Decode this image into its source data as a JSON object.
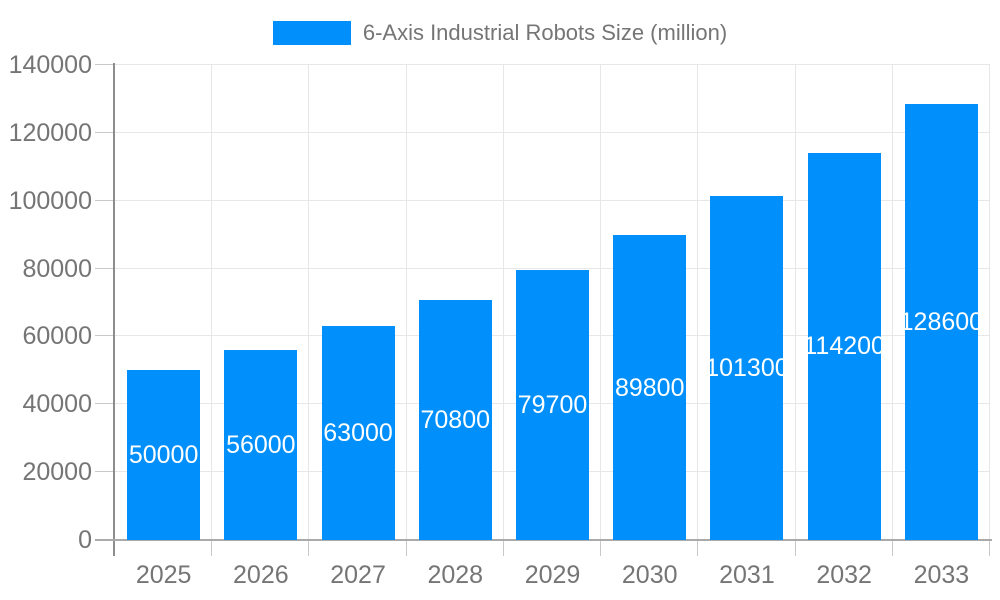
{
  "chart_data": {
    "type": "bar",
    "title": "6-Axis Industrial Robots Size (million)",
    "legend": {
      "label": "6-Axis Industrial Robots Size (million)",
      "position": "top"
    },
    "categories": [
      "2025",
      "2026",
      "2027",
      "2028",
      "2029",
      "2030",
      "2031",
      "2032",
      "2033"
    ],
    "series": [
      {
        "name": "6-Axis Industrial Robots Size (million)",
        "values": [
          50000,
          56000,
          63000,
          70800,
          79700,
          89800,
          101300,
          114200,
          128600
        ]
      }
    ],
    "data_labels": [
      "50000",
      "56000",
      "63000",
      "70800",
      "79700",
      "89800",
      "101300",
      "114200",
      "128600"
    ],
    "xlabel": "",
    "ylabel": "",
    "ylim": [
      0,
      140000
    ],
    "y_tick_step": 20000,
    "y_tick_labels": [
      "0",
      "20000",
      "40000",
      "60000",
      "80000",
      "100000",
      "120000",
      "140000"
    ],
    "grid": true,
    "colors": {
      "bar": "#008FFB",
      "data_label": "#ffffff",
      "axis_text": "#757575",
      "gridline": "#e7e7e7",
      "tick": "#c9c9c9",
      "axis_line_y": "#8d8d8d",
      "axis_line_x": "#aaaaaa",
      "background": "#ffffff"
    }
  }
}
